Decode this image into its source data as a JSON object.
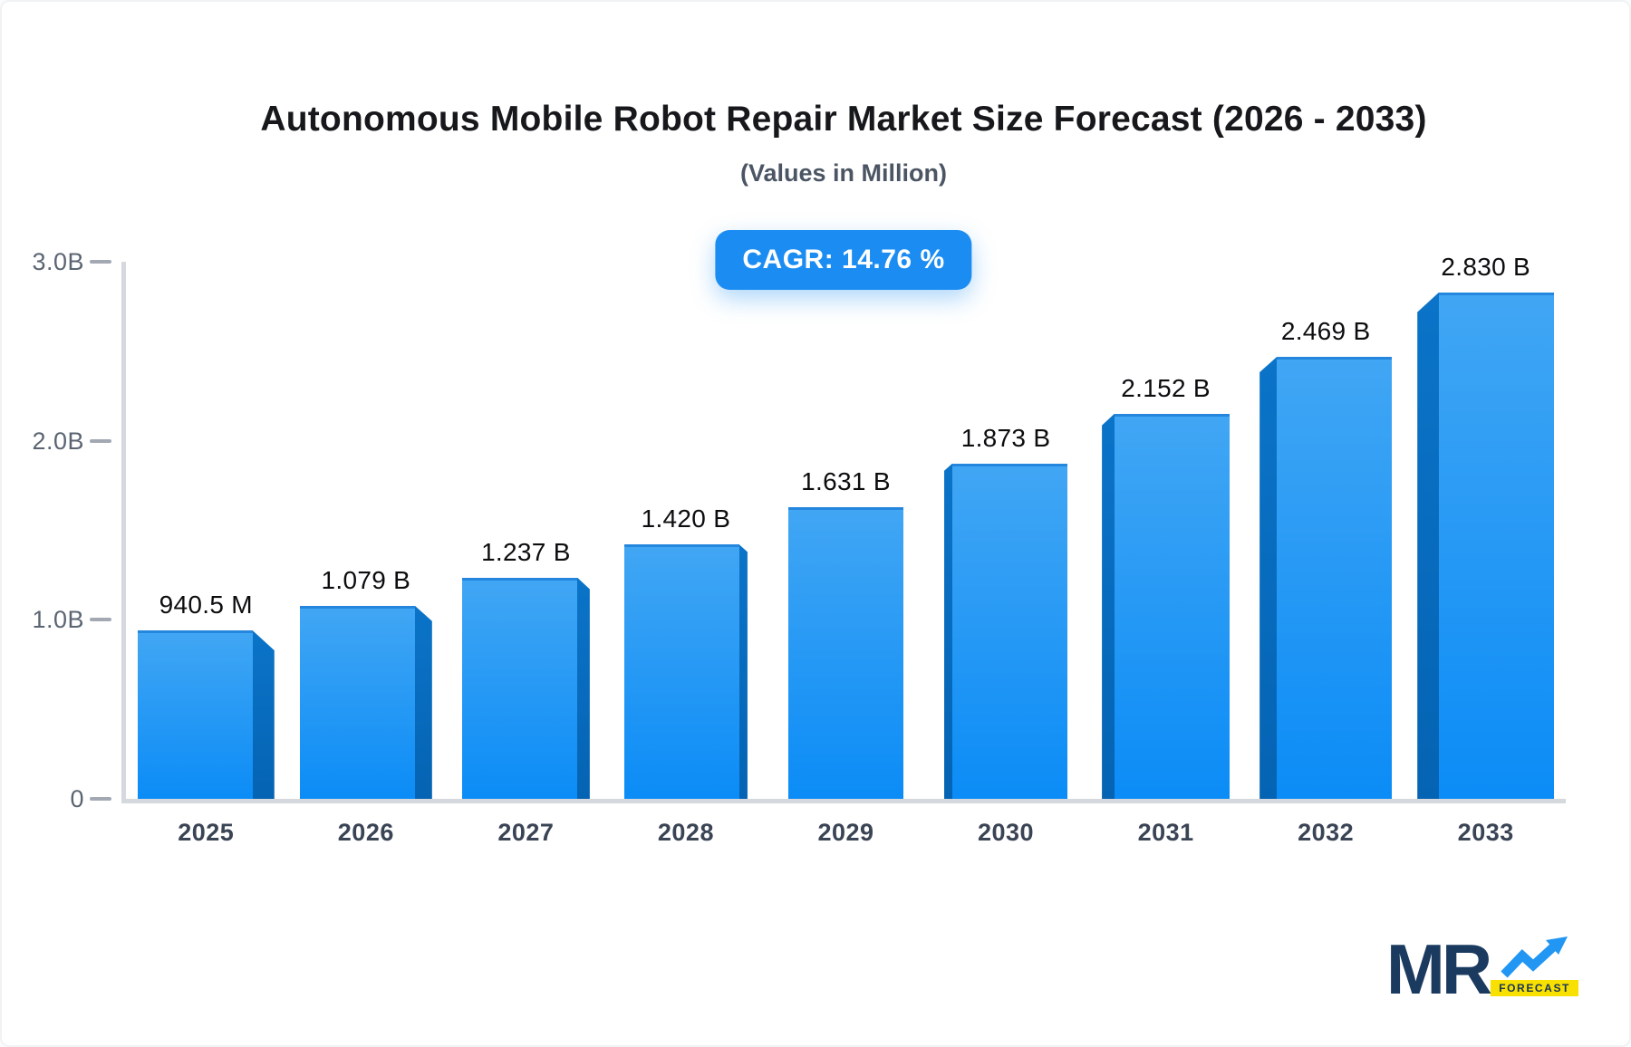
{
  "header": {
    "title": "Autonomous Mobile Robot Repair Market Size Forecast (2026 - 2033)",
    "subtitle": "(Values in Million)",
    "cagr_badge": "CAGR: 14.76 %"
  },
  "chart_data": {
    "type": "bar",
    "title": "Autonomous Mobile Robot Repair Market Size Forecast (2026 - 2033)",
    "subtitle": "(Values in Million)",
    "cagr_percent": 14.76,
    "categories": [
      "2025",
      "2026",
      "2027",
      "2028",
      "2029",
      "2030",
      "2031",
      "2032",
      "2033"
    ],
    "values_billions": [
      0.9405,
      1.079,
      1.237,
      1.42,
      1.631,
      1.873,
      2.152,
      2.469,
      2.83
    ],
    "value_labels": [
      "940.5 M",
      "1.079 B",
      "1.237 B",
      "1.420 B",
      "1.631 B",
      "1.873 B",
      "2.152 B",
      "2.469 B",
      "2.830 B"
    ],
    "xlabel": "",
    "ylabel": "",
    "ylim": [
      0,
      3
    ],
    "yticks": [
      {
        "value": 3,
        "label": "3.0B"
      },
      {
        "value": 2,
        "label": "2.0B"
      },
      {
        "value": 1,
        "label": "1.0B"
      },
      {
        "value": 0,
        "label": "0"
      }
    ],
    "grid": false,
    "legend": false,
    "bar_style": "3d-extruded",
    "colors": {
      "bar_face_top": "#41a6f4",
      "bar_face_bottom": "#0b8cf6",
      "bar_side_top": "#0b74c8",
      "bar_side_bottom": "#0563b3",
      "axis": "#d5d8dd",
      "tick_dash": "#a2a9b3",
      "value_label": "#0c0d0f",
      "year_label": "#3a4454"
    }
  },
  "logo": {
    "brand": "MR",
    "tagline": "FORECAST"
  },
  "theme": {
    "badge_bg": "#1b8df2",
    "badge_text": "#ffffff",
    "logo_navy": "#1b3a5f",
    "logo_arrow_blue": "#2196f3",
    "logo_yellow": "#f8e000",
    "background": "#ffffff"
  }
}
